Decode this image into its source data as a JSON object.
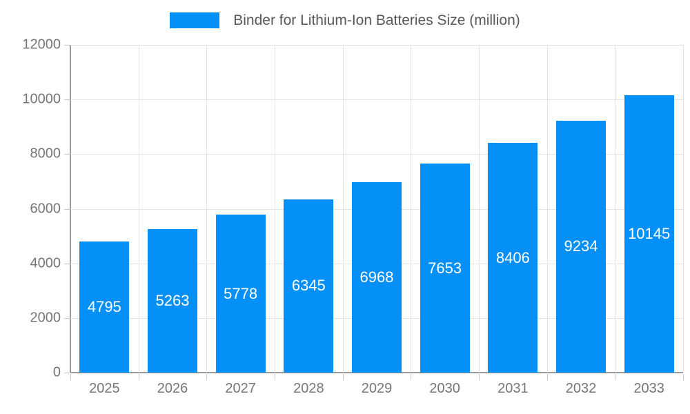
{
  "legend": {
    "label": "Binder for Lithium-Ion Batteries Size (million)",
    "swatch_color": "#0590f8"
  },
  "chart_data": {
    "type": "bar",
    "title": "Binder for Lithium-Ion Batteries Size (million)",
    "categories": [
      "2025",
      "2026",
      "2027",
      "2028",
      "2029",
      "2030",
      "2031",
      "2032",
      "2033"
    ],
    "series": [
      {
        "name": "Binder for Lithium-Ion Batteries Size (million)",
        "values": [
          4795,
          5263,
          5778,
          6345,
          6968,
          7653,
          8406,
          9234,
          10145
        ]
      }
    ],
    "xlabel": "",
    "ylabel": "",
    "ylim": [
      0,
      12000
    ],
    "yticks": [
      0,
      2000,
      4000,
      6000,
      8000,
      10000,
      12000
    ],
    "grid": true,
    "legend_position": "top",
    "bar_color": "#0590f8",
    "value_label_color": "#ffffff",
    "tick_label_color": "#757575"
  }
}
